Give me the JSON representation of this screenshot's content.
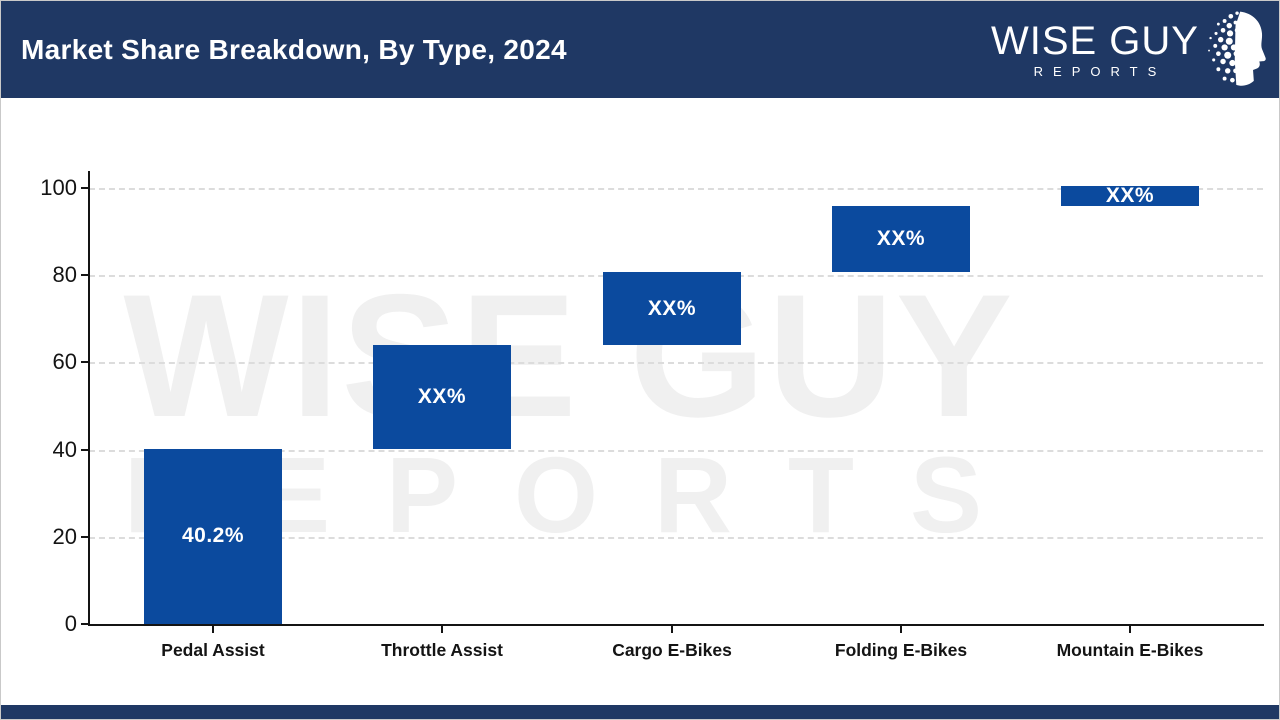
{
  "header": {
    "title": "Market Share Breakdown, By Type, 2024",
    "logo": {
      "name": "WISE GUY",
      "subtitle": "REPORTS"
    }
  },
  "watermark": {
    "line1": "WISE GUY",
    "line2": "REPORTS"
  },
  "colors": {
    "navy": "#1F3864",
    "bar": "#0B4A9E",
    "grid": "#DCDCDC",
    "axis": "#141414",
    "watermark": "#F0F0F0",
    "border": "#C9C9C9"
  },
  "chart_data": {
    "type": "bar",
    "subtype": "waterfall",
    "title": "Market Share Breakdown, By Type, 2024",
    "categories": [
      "Pedal Assist",
      "Throttle Assist",
      "Cargo E-Bikes",
      "Folding E-Bikes",
      "Mountain E-Bikes"
    ],
    "segments": [
      {
        "category": "Pedal Assist",
        "start": 0,
        "end": 40.2,
        "label": "40.2%"
      },
      {
        "category": "Throttle Assist",
        "start": 40.2,
        "end": 64.0,
        "label": "XX%"
      },
      {
        "category": "Cargo E-Bikes",
        "start": 64.0,
        "end": 80.7,
        "label": "XX%"
      },
      {
        "category": "Folding E-Bikes",
        "start": 80.7,
        "end": 95.8,
        "label": "XX%"
      },
      {
        "category": "Mountain E-Bikes",
        "start": 95.8,
        "end": 100.5,
        "label": "XX%"
      }
    ],
    "yticks": [
      0,
      20,
      40,
      60,
      80,
      100
    ],
    "ylim": [
      0,
      104
    ],
    "xlabel": "",
    "ylabel": "",
    "grid": "dashed-horizontal",
    "legend": "none",
    "bar_color": "#0B4A9E"
  }
}
